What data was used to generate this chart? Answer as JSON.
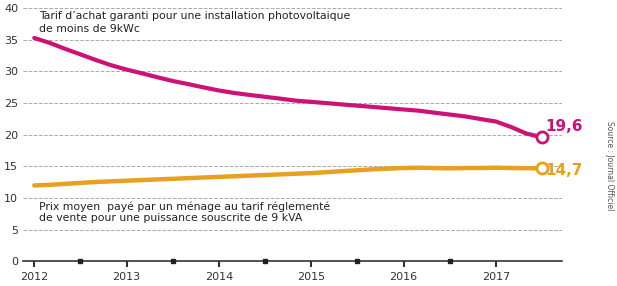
{
  "pink_x": [
    2012.0,
    2012.17,
    2012.33,
    2012.5,
    2012.67,
    2012.83,
    2013.0,
    2013.17,
    2013.33,
    2013.5,
    2013.67,
    2013.83,
    2014.0,
    2014.17,
    2014.33,
    2014.5,
    2014.67,
    2014.83,
    2015.0,
    2015.17,
    2015.33,
    2015.5,
    2015.67,
    2015.83,
    2016.0,
    2016.17,
    2016.33,
    2016.5,
    2016.67,
    2016.83,
    2017.0,
    2017.17,
    2017.33,
    2017.5
  ],
  "pink_y": [
    35.3,
    34.5,
    33.6,
    32.7,
    31.8,
    31.0,
    30.3,
    29.7,
    29.1,
    28.5,
    28.0,
    27.5,
    27.0,
    26.6,
    26.3,
    26.0,
    25.7,
    25.4,
    25.2,
    25.0,
    24.8,
    24.6,
    24.4,
    24.2,
    24.0,
    23.8,
    23.5,
    23.2,
    22.9,
    22.5,
    22.1,
    21.2,
    20.2,
    19.6
  ],
  "orange_x": [
    2012.0,
    2012.17,
    2012.33,
    2012.5,
    2012.67,
    2012.83,
    2013.0,
    2013.17,
    2013.33,
    2013.5,
    2013.67,
    2013.83,
    2014.0,
    2014.17,
    2014.33,
    2014.5,
    2014.67,
    2014.83,
    2015.0,
    2015.17,
    2015.33,
    2015.5,
    2015.67,
    2015.83,
    2016.0,
    2016.17,
    2016.33,
    2016.5,
    2016.67,
    2016.83,
    2017.0,
    2017.17,
    2017.33,
    2017.5
  ],
  "orange_y": [
    12.0,
    12.1,
    12.25,
    12.4,
    12.55,
    12.65,
    12.75,
    12.85,
    12.95,
    13.05,
    13.15,
    13.25,
    13.35,
    13.45,
    13.55,
    13.65,
    13.75,
    13.85,
    13.95,
    14.1,
    14.25,
    14.4,
    14.55,
    14.65,
    14.75,
    14.8,
    14.75,
    14.7,
    14.75,
    14.75,
    14.8,
    14.75,
    14.72,
    14.7
  ],
  "pink_color": "#CC1177",
  "orange_color": "#E8A020",
  "pink_label": "19,6",
  "orange_label": "14,7",
  "annotation_pink_line1": "Tarif d’achat garanti pour une installation photovoltaique",
  "annotation_pink_line2": "de moins de 9kWc",
  "annotation_orange_line1": "Prix moyen  payé par un ménage au tarif réglementé",
  "annotation_orange_line2": "de vente pour une puissance souscrite de 9 kVA",
  "source_text": "Source : Journal Officiel",
  "ylim": [
    0,
    40
  ],
  "xlim": [
    2011.88,
    2017.72
  ],
  "yticks": [
    0,
    5,
    10,
    15,
    20,
    25,
    30,
    35,
    40
  ],
  "xticks": [
    2012,
    2013,
    2014,
    2015,
    2016,
    2017
  ],
  "bg_color": "#FFFFFF",
  "grid_color": "#AAAAAA",
  "tick_color": "#333333",
  "linewidth_pink": 3.0,
  "linewidth_orange": 3.2,
  "label_fontsize": 11,
  "annot_fontsize": 7.8
}
